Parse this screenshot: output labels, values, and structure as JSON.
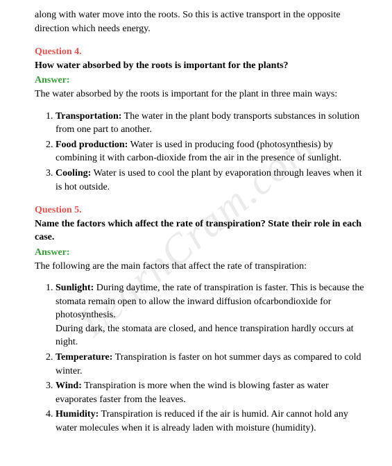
{
  "watermark": "LearnCram.com",
  "continuation_text": "along with water move into the roots. So this is active transport in the opposite direction which needs energy.",
  "q4": {
    "label": "Question 4.",
    "text": "How water absorbed by the roots is important for the plants?",
    "answer_label": "Answer:",
    "answer_intro": "The water absorbed by the roots is important for the plant in three main ways:",
    "items": [
      {
        "term": "Transportation:",
        "desc": " The water in the plant body transports substances in solution from one part to another."
      },
      {
        "term": "Food production:",
        "desc": " Water is used in producing food (photosynthesis) by combining it with carbon-dioxide from the air in the presence of sunlight."
      },
      {
        "term": "Cooling:",
        "desc": " Water is used to cool the plant by evaporation through leaves when it is hot outside."
      }
    ]
  },
  "q5": {
    "label": "Question 5.",
    "text": "Name the factors which affect the rate of transpiration? State their role in each case.",
    "answer_label": "Answer:",
    "answer_intro": "The following are the main factors that affect the rate of transpiration:",
    "items": [
      {
        "term": "Sunlight:",
        "desc1": " During daytime, the rate of transpiration is faster. This is because the stomata remain open to allow the inward diffusion ofcarbondioxide for photosynthesis.",
        "desc2": "During dark, the stomata are closed, and hence transpiration hardly occurs at night."
      },
      {
        "term": "Temperature:",
        "desc1": " Transpiration is faster on hot summer days as compared to cold winter."
      },
      {
        "term": "Wind:",
        "desc1": " Transpiration is more when the wind is blowing faster as water evaporates faster from the leaves."
      },
      {
        "term": "Humidity:",
        "desc1": " Transpiration is reduced if the air is humid. Air cannot hold any water molecules when it is already laden with moisture (humidity)."
      }
    ]
  }
}
